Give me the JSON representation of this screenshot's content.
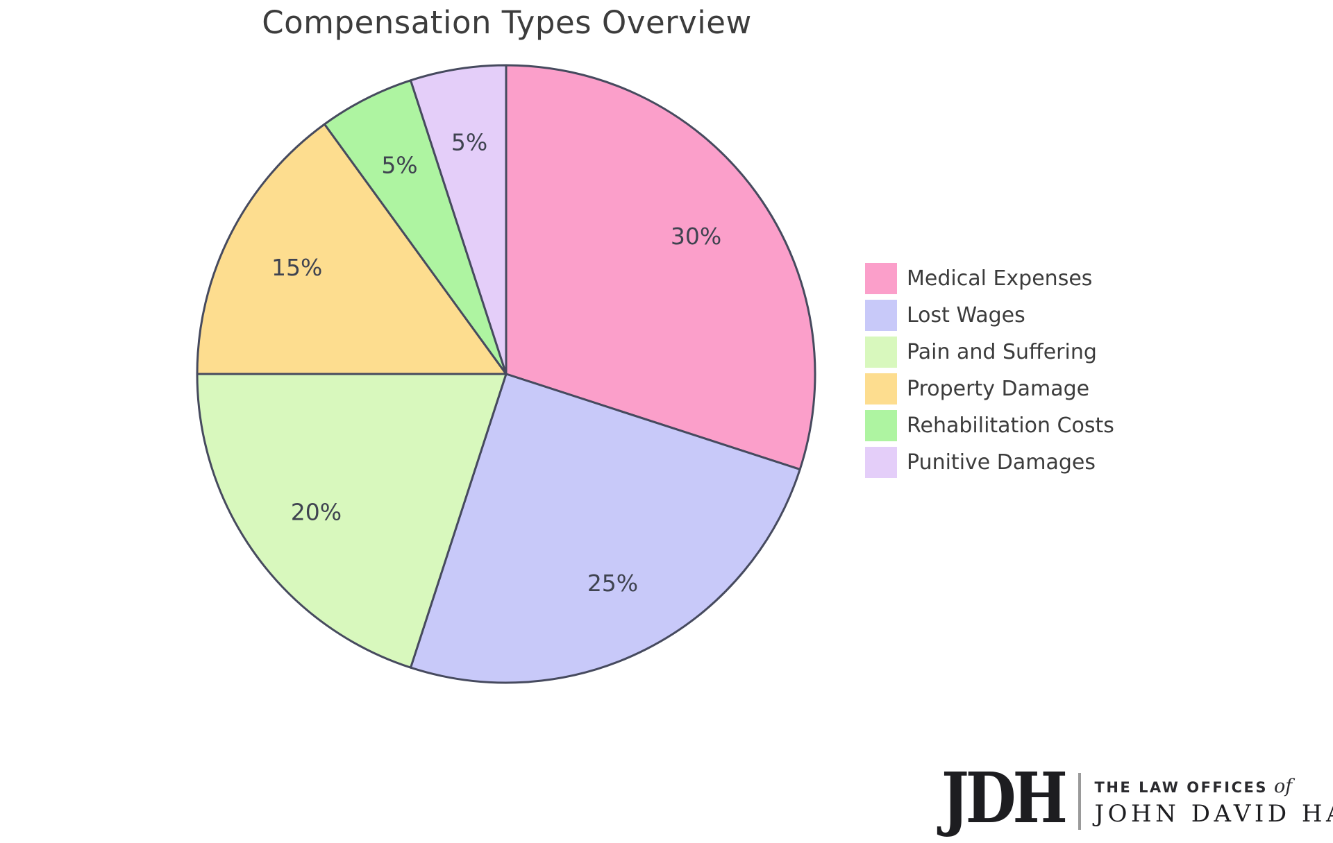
{
  "page": {
    "background_color": "#FFFFFF"
  },
  "chart_data": {
    "type": "pie",
    "title": "Compensation Types Overview",
    "direction": "clockwise",
    "start_angle": "12-oclock",
    "legend_position": "right",
    "slice_border_color": "#464A5E",
    "percent_label_color": "#3F4350",
    "title_color": "#3C3C3C",
    "legend_text_color": "#3C3C3C",
    "slices": [
      {
        "label": "Medical Expenses",
        "value": 30,
        "pct_label": "30%",
        "color": "#FB9FCA"
      },
      {
        "label": "Lost Wages",
        "value": 25,
        "pct_label": "25%",
        "color": "#C8C9F9"
      },
      {
        "label": "Pain and Suffering",
        "value": 20,
        "pct_label": "20%",
        "color": "#D8F8BD"
      },
      {
        "label": "Property Damage",
        "value": 15,
        "pct_label": "15%",
        "color": "#FDDD8F"
      },
      {
        "label": "Rehabilitation Costs",
        "value": 5,
        "pct_label": "5%",
        "color": "#AEF4A1"
      },
      {
        "label": "Punitive Damages",
        "value": 5,
        "pct_label": "5%",
        "color": "#E4CEF9"
      }
    ]
  },
  "brand": {
    "initials": "JDH",
    "tagline_prefix": "THE LAW OFFICES",
    "tagline_of": "of",
    "name": "JOHN DAVID HART"
  }
}
